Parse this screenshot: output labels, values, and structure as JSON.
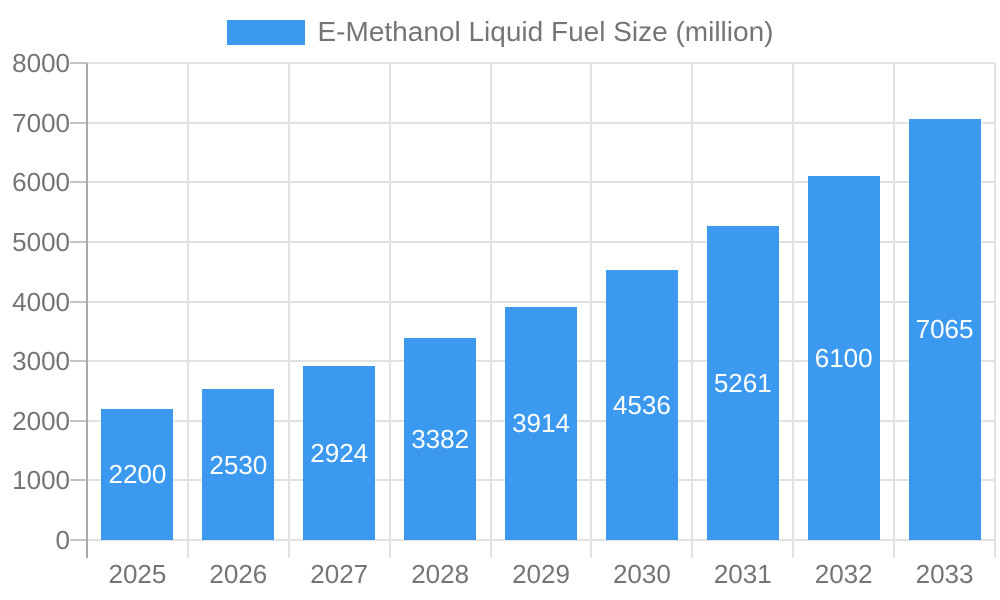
{
  "legend": {
    "label": "E-Methanol Liquid Fuel Size (million)"
  },
  "colors": {
    "bar": "#3b9af0",
    "grid": "#e2e2e2",
    "axis_line": "#aaaaaa",
    "y_tick": "#c4c4c4",
    "x_tick": "#e2e2e2",
    "axis_text": "#757575",
    "value_text": "#ffffff",
    "background": "#ffffff"
  },
  "chart_data": {
    "type": "bar",
    "title": "E-Methanol Liquid Fuel Size (million)",
    "series_name": "E-Methanol Liquid Fuel Size (million)",
    "categories": [
      "2025",
      "2026",
      "2027",
      "2028",
      "2029",
      "2030",
      "2031",
      "2032",
      "2033"
    ],
    "values": [
      2200,
      2530,
      2924,
      3382,
      3914,
      4536,
      5261,
      6100,
      7065
    ],
    "value_labels": [
      "2200",
      "2530",
      "2924",
      "3382",
      "3914",
      "4536",
      "5261",
      "6100",
      "7065"
    ],
    "xlabel": "",
    "ylabel": "",
    "ylim": [
      0,
      8000
    ],
    "yticks": [
      "0",
      "1000",
      "2000",
      "3000",
      "4000",
      "5000",
      "6000",
      "7000",
      "8000"
    ],
    "ytick_interval": 1000,
    "grid": true,
    "legend_position": "top-center",
    "value_label_position": "inside-center"
  }
}
